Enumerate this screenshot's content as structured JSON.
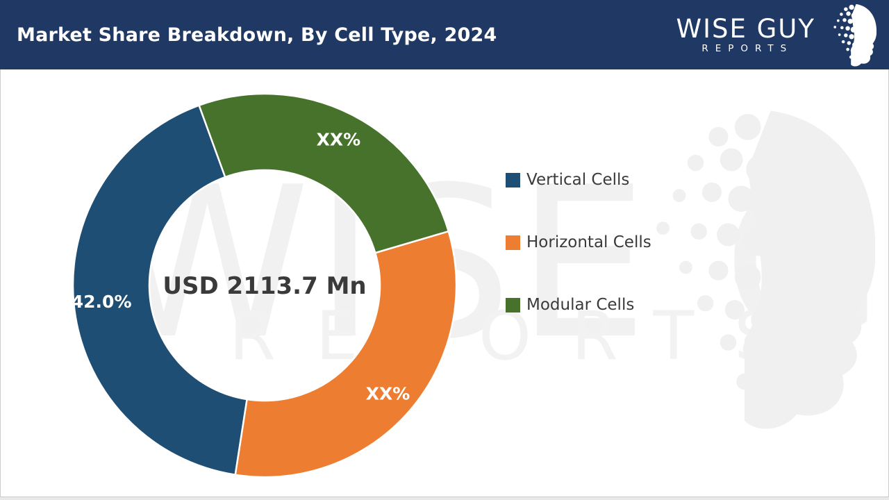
{
  "header": {
    "title": "Market Share Breakdown, By Cell Type, 2024",
    "bg_color": "#1F3864",
    "logo": {
      "line1": "WISE GUY",
      "line2": "REPORTS"
    }
  },
  "watermark": {
    "line1": "WISE GUY",
    "line2": "REPORTS"
  },
  "chart_data": {
    "type": "pie",
    "subtype": "donut",
    "title": "Market Share Breakdown, By Cell Type, 2024",
    "center_label": "USD 2113.7 Mn",
    "start_angle_deg": 110,
    "direction": "counterclockwise",
    "donut_hole_ratio": 0.6,
    "geometry": {
      "cx": 381,
      "cy": 411,
      "outer_r": 276,
      "inner_r": 166,
      "label_r_ratio": 0.855
    },
    "separator_color": "#ffffff",
    "series": [
      {
        "name": "Vertical Cells",
        "value": 42.0,
        "label": "42.0%",
        "color": "#1F4E74"
      },
      {
        "name": "Horizontal Cells",
        "value": 32.0,
        "label": "XX%",
        "color": "#ED7D31"
      },
      {
        "name": "Modular Cells",
        "value": 26.0,
        "label": "XX%",
        "color": "#47722B"
      }
    ],
    "legend_position": "right"
  }
}
